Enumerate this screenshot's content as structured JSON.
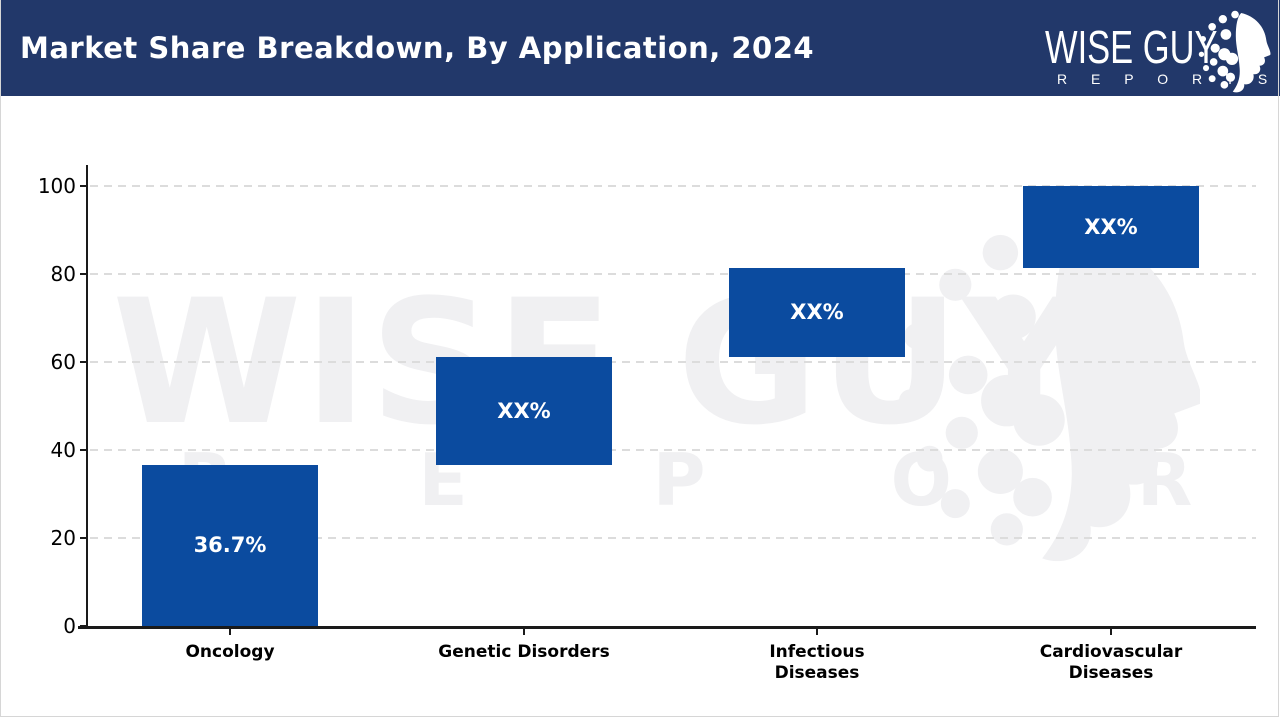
{
  "header": {
    "title": "Market Share Breakdown, By Application, 2024",
    "logo": {
      "line1": "WISE GUY",
      "line2": "R E P O R T S"
    }
  },
  "watermark": {
    "line1": "WISE GUY",
    "line2": "R E P O R T S"
  },
  "colors": {
    "header_bg": "#22386a",
    "bar_blue": "#0b4b9f",
    "grid_gray": "#dcdcdc",
    "axis_black": "#1a1a1a",
    "watermark_gray": "#f0f0f2",
    "value_label_white": "#ffffff",
    "frame_border": "#d6d6d6"
  },
  "chart_data": {
    "type": "bar",
    "subtype": "waterfall-floating-bars",
    "title": "Market Share Breakdown, By Application, 2024",
    "unit": "%",
    "categories": [
      "Oncology",
      "Genetic Disorders",
      "Infectious\nDiseases",
      "Cardiovascular\nDiseases"
    ],
    "segments": [
      {
        "category": "Oncology",
        "start": 0,
        "end": 36.7,
        "label": "36.7%"
      },
      {
        "category": "Genetic Disorders",
        "start": 36.7,
        "end": 61.1,
        "label": "XX%"
      },
      {
        "category": "Infectious Diseases",
        "start": 61.1,
        "end": 81.4,
        "label": "XX%"
      },
      {
        "category": "Cardiovascular Diseases",
        "start": 81.4,
        "end": 100,
        "label": "XX%"
      }
    ],
    "yticks": [
      0,
      20,
      40,
      60,
      80,
      100
    ],
    "ylim": [
      0,
      105
    ],
    "xlabel": "",
    "ylabel": "",
    "grid": "horizontal-dashed",
    "legend": "none",
    "bar_color": "#0b4b9f",
    "value_label_color": "#ffffff"
  }
}
